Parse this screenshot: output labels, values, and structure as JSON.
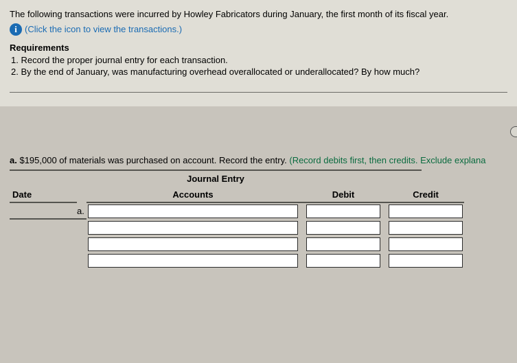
{
  "intro": "The following transactions were incurred by Howley Fabricators during January, the first month of its fiscal year.",
  "info_link": "(Click the icon to view the transactions.)",
  "info_glyph": "i",
  "requirements_title": "Requirements",
  "req1": "1. Record the proper journal entry for each transaction.",
  "req2": "2. By the end of January, was manufacturing overhead overallocated or underallocated? By how much?",
  "part_a": {
    "prefix": "a. ",
    "black": "$195,000 of materials was purchased on account. Record the entry. ",
    "green": "(Record debits first, then credits. Exclude explana"
  },
  "journal": {
    "title": "Journal Entry",
    "headers": {
      "date": "Date",
      "accounts": "Accounts",
      "debit": "Debit",
      "credit": "Credit"
    },
    "row_label": "a.",
    "rows": 4
  },
  "colors": {
    "panel_bg": "#e0ded6",
    "page_bg": "#c8c4bc",
    "link": "#1a6bb3",
    "green_text": "#0a6b3f",
    "rule": "#54544f",
    "input_bg": "#ffffff",
    "input_border": "#2b2b2b"
  }
}
